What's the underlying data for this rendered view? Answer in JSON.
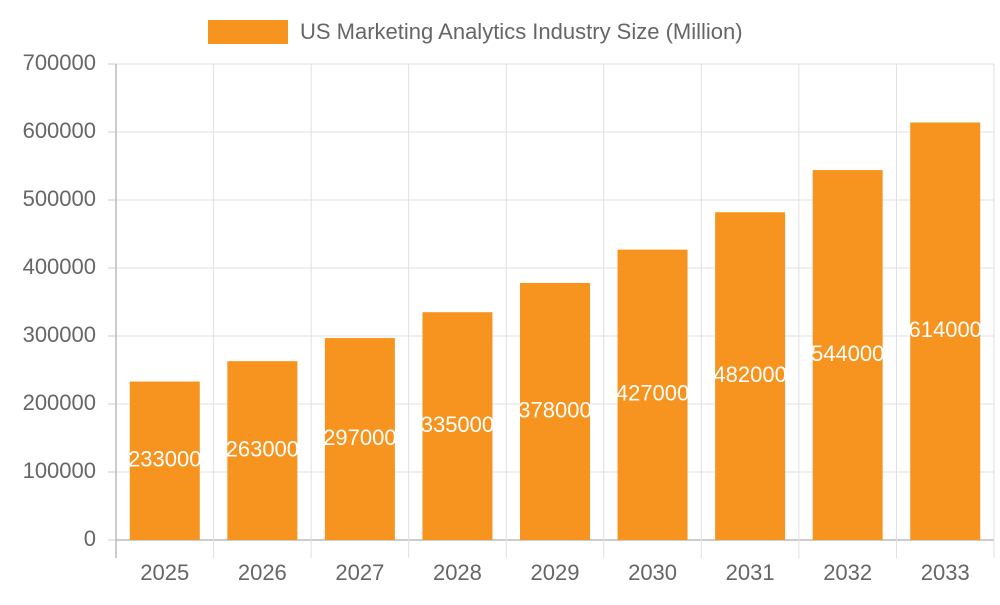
{
  "chart_data": {
    "type": "bar",
    "categories": [
      "2025",
      "2026",
      "2027",
      "2028",
      "2029",
      "2030",
      "2031",
      "2032",
      "2033"
    ],
    "series": [
      {
        "name": "US Marketing Analytics Industry Size (Million)",
        "color": "#f7941f",
        "values": [
          233000,
          263000,
          297000,
          335000,
          378000,
          427000,
          482000,
          544000,
          614000
        ]
      }
    ],
    "ylim": [
      0,
      700000
    ],
    "yticks": [
      0,
      100000,
      200000,
      300000,
      400000,
      500000,
      600000,
      700000
    ],
    "grid": true,
    "legend": "top"
  }
}
